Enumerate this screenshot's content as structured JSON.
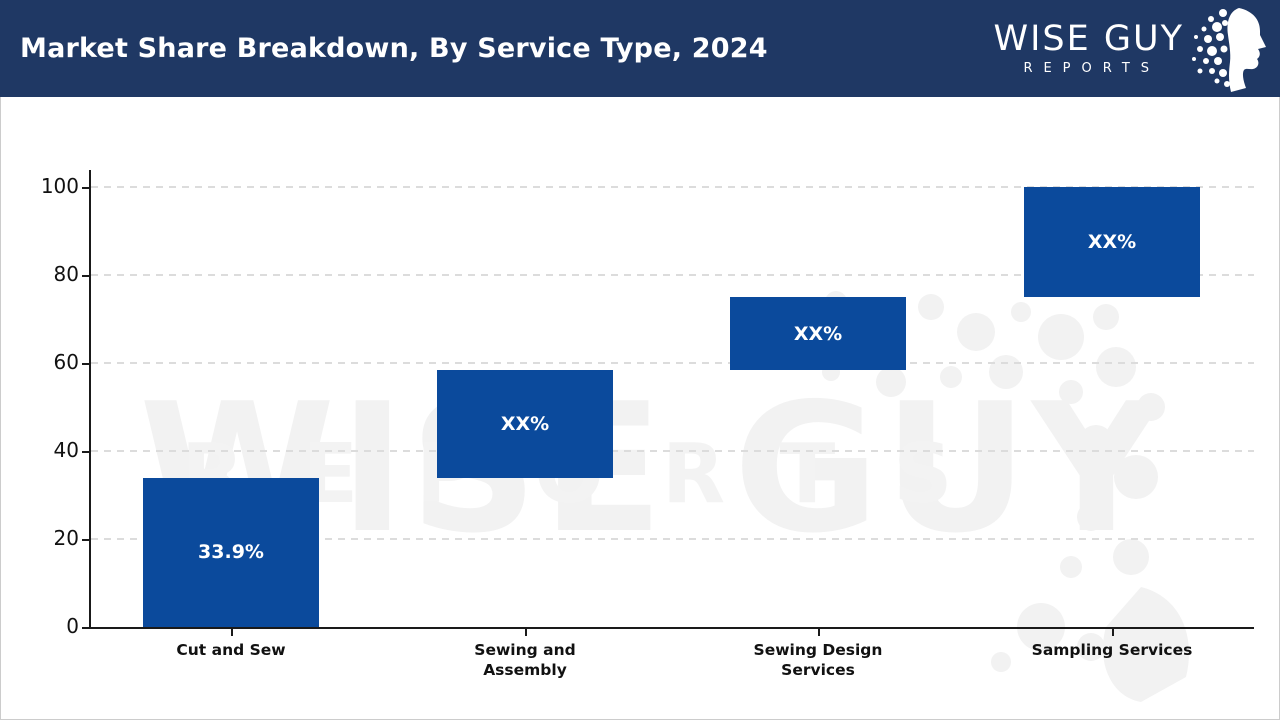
{
  "header": {
    "title": "Market Share Breakdown, By Service Type, 2024",
    "logo": {
      "line1": "WISE GUY",
      "line2": "REPORTS"
    }
  },
  "watermark": {
    "line1": "WISE GUY",
    "line2": "REPORTS"
  },
  "colors": {
    "header_bg": "#1F3864",
    "bar": "#0B4A9C",
    "bar_label": "#FFFFFF",
    "axis": "#1A1A1A",
    "grid": "#DCDCDC",
    "watermark": "#F2F2F2",
    "canvas_border": "#CCCCCC",
    "background": "#FFFFFF"
  },
  "chart_data": {
    "type": "bar",
    "subtype": "waterfall",
    "title": "Market Share Breakdown, By Service Type, 2024",
    "categories": [
      "Cut and Sew",
      "Sewing and\nAssembly",
      "Sewing Design\nServices",
      "Sampling Services"
    ],
    "segments": [
      {
        "category": "Cut and Sew",
        "start": 0,
        "end": 33.9,
        "value": 33.9,
        "label": "33.9%"
      },
      {
        "category": "Sewing and Assembly",
        "start": 33.9,
        "end": 58.4,
        "value": 24.5,
        "label": "XX%"
      },
      {
        "category": "Sewing Design Services",
        "start": 58.4,
        "end": 75.0,
        "value": 16.6,
        "label": "XX%"
      },
      {
        "category": "Sampling Services",
        "start": 75.0,
        "end": 100.0,
        "value": 25.0,
        "label": "XX%"
      }
    ],
    "yticks": [
      0,
      20,
      40,
      60,
      80,
      100
    ],
    "ylim": [
      0,
      105
    ],
    "xlabel": "",
    "ylabel": "",
    "grid": "dashed-horizontal",
    "legend": "none",
    "bar_color": "#0B4A9C",
    "label_color": "#FFFFFF"
  }
}
